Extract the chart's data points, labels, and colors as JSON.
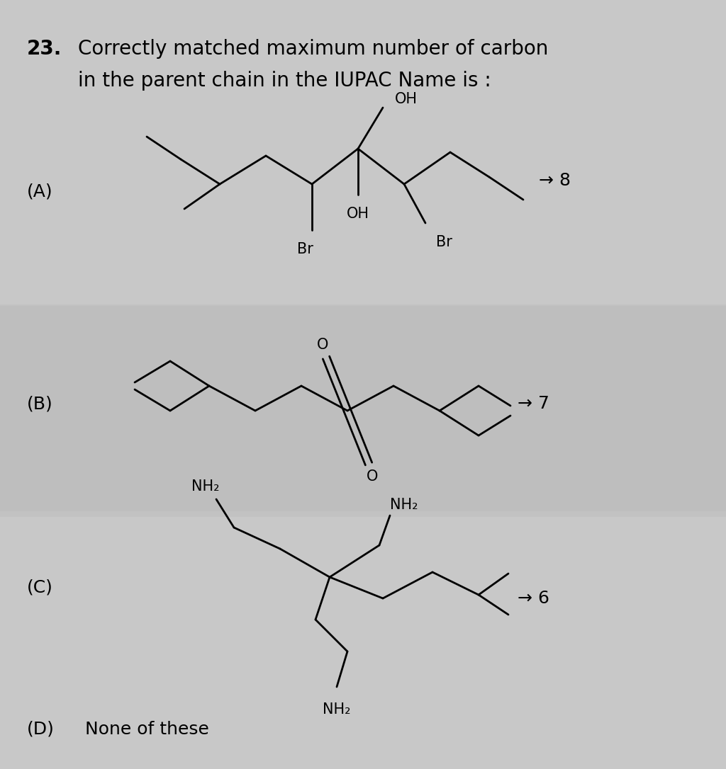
{
  "title": "23.",
  "background_color": "#c8c8c8",
  "text_color": "#000000",
  "option_A_label": "(A)",
  "option_A_arrow": "→ 8",
  "option_B_label": "(B)",
  "option_B_arrow": "→ 7",
  "option_C_label": "(C)",
  "option_C_arrow": "→ 6",
  "option_D_label": "(D)",
  "option_D_text": "None of these",
  "q_line1": "Correctly matched maximum number of carbon",
  "q_line2": "in the parent chain in the IUPAC Name is :",
  "font_size_question": 20,
  "font_size_labels": 18,
  "font_size_atoms": 15,
  "font_size_arrows": 18,
  "bond_lw": 2.0
}
